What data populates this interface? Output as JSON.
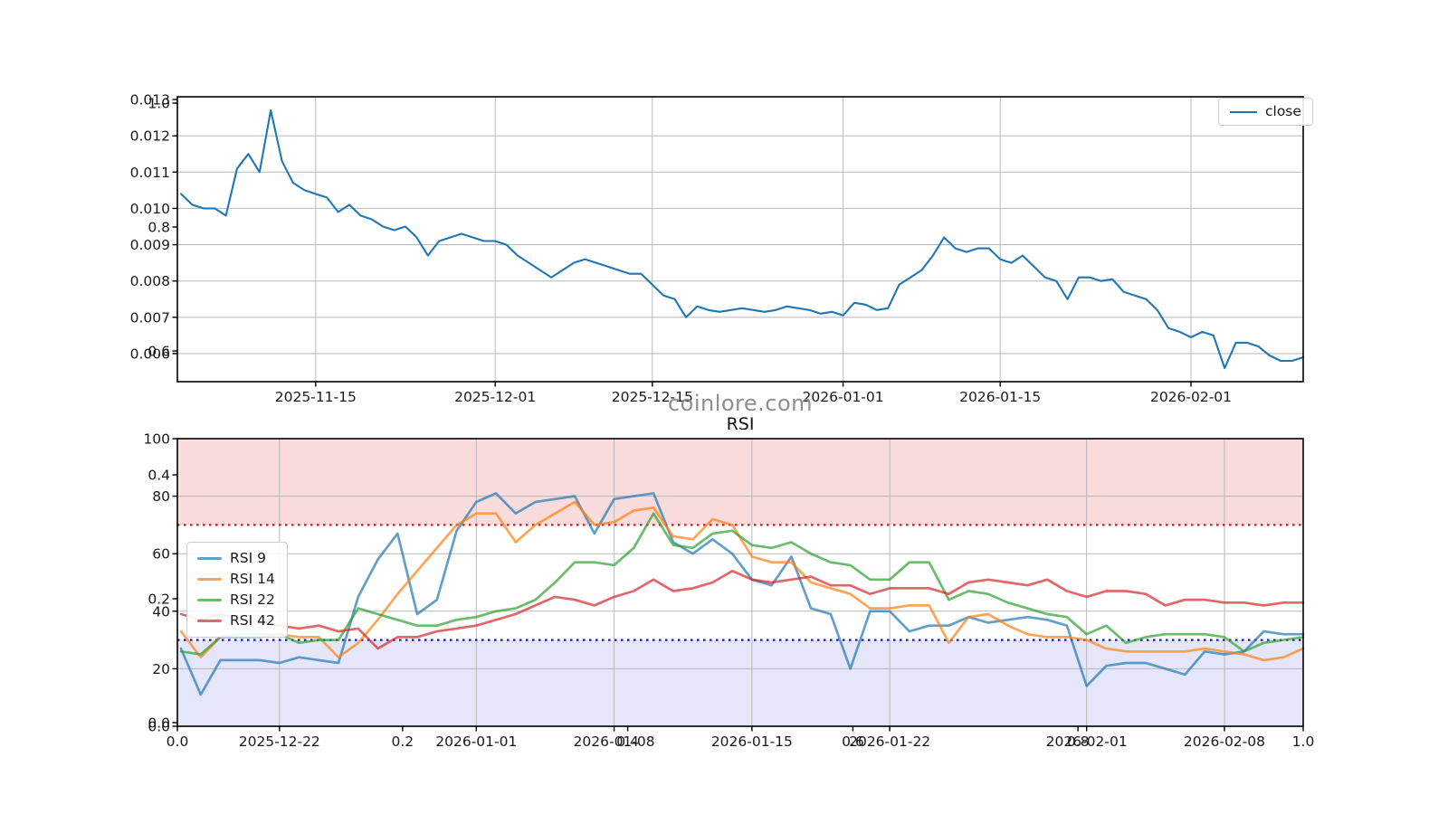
{
  "watermark": "coinlore.com",
  "overlay_axis": {
    "x_ticks": [
      {
        "label": "0.0",
        "f": 0.0
      },
      {
        "label": "0.2",
        "f": 0.2
      },
      {
        "label": "0.4",
        "f": 0.4
      },
      {
        "label": "0.6",
        "f": 0.6
      },
      {
        "label": "0.8",
        "f": 0.8
      },
      {
        "label": "1.0",
        "f": 1.0
      }
    ],
    "y_ticks": [
      {
        "label": "1.0",
        "f": 1.0
      },
      {
        "label": "0.8",
        "f": 0.8
      },
      {
        "label": "0.6",
        "f": 0.6
      },
      {
        "label": "0.4",
        "f": 0.4
      },
      {
        "label": "0.2",
        "f": 0.2
      },
      {
        "label": "0.0",
        "f": 0.0
      }
    ]
  },
  "colors": {
    "close": "#1f77b4",
    "rsi9": "rgba(31,119,180,0.7)",
    "rsi14": "rgba(255,127,14,0.7)",
    "rsi22": "rgba(44,160,44,0.7)",
    "rsi42": "rgba(214,39,40,0.7)",
    "overbought_fill": "#fbdcdc",
    "oversold_fill": "#e6e6fb",
    "overbought_line": "#e01020",
    "oversold_line": "#1414c8",
    "grid": "#b8b8b8",
    "frame": "#000000",
    "tick_text": "#191919"
  },
  "chart_data": [
    {
      "type": "line",
      "title": "",
      "ylabel": "",
      "xlabel": "",
      "grid": true,
      "legend_position": "upper right",
      "ylim": [
        0.0052,
        0.0131
      ],
      "y_ticks": [
        0.013,
        0.012,
        0.011,
        0.01,
        0.009,
        0.008,
        0.007,
        0.006
      ],
      "y_tick_labels": [
        "0.013",
        "0.012",
        "0.011",
        "0.010",
        "0.009",
        "0.008",
        "0.007",
        "0.006"
      ],
      "x_tick_labels": [
        "2025-11-15",
        "2025-12-01",
        "2025-12-15",
        "2026-01-01",
        "2026-01-15",
        "2026-02-01"
      ],
      "x_tick_days": [
        12,
        28,
        42,
        59,
        73,
        90
      ],
      "series": [
        {
          "name": "close",
          "color": "#1f77b4",
          "values": [
            0.0104,
            0.0101,
            0.01,
            0.01,
            0.0098,
            0.0111,
            0.0115,
            0.011,
            0.0127,
            0.0113,
            0.0107,
            0.0105,
            0.0104,
            0.0103,
            0.0099,
            0.0101,
            0.0098,
            0.0097,
            0.0095,
            0.0094,
            0.0095,
            0.0092,
            0.0087,
            0.0091,
            0.0092,
            0.0093,
            0.0092,
            0.0091,
            0.0091,
            0.009,
            0.0087,
            0.0085,
            0.0083,
            0.0081,
            0.0083,
            0.0085,
            0.0086,
            0.0085,
            0.0084,
            0.0083,
            0.0082,
            0.0082,
            0.0079,
            0.0076,
            0.0075,
            0.007,
            0.0073,
            0.0072,
            0.00715,
            0.0072,
            0.00725,
            0.0072,
            0.00715,
            0.0072,
            0.0073,
            0.00725,
            0.0072,
            0.0071,
            0.00715,
            0.00705,
            0.0074,
            0.00735,
            0.0072,
            0.00725,
            0.0079,
            0.0081,
            0.0083,
            0.0087,
            0.0092,
            0.0089,
            0.0088,
            0.0089,
            0.0089,
            0.0086,
            0.0085,
            0.0087,
            0.0084,
            0.0081,
            0.008,
            0.0075,
            0.0081,
            0.0081,
            0.008,
            0.00805,
            0.0077,
            0.0076,
            0.0075,
            0.0072,
            0.0067,
            0.0066,
            0.00645,
            0.0066,
            0.0065,
            0.0056,
            0.0063,
            0.0063,
            0.0062,
            0.00595,
            0.0058,
            0.0058,
            0.0059
          ]
        }
      ]
    },
    {
      "type": "line",
      "title": "RSI",
      "ylabel": "",
      "xlabel": "",
      "grid": true,
      "legend_position": "center left",
      "ylim": [
        0,
        100
      ],
      "y_ticks": [
        100,
        80,
        60,
        40,
        20,
        0
      ],
      "y_tick_labels": [
        "100",
        "80",
        "60",
        "40",
        "20",
        "0.0"
      ],
      "x_tick_labels": [
        "2025-12-22",
        "2026-01-01",
        "2026-01-08",
        "2026-01-15",
        "2026-01-22",
        "2026-02-01",
        "2026-02-08"
      ],
      "x_tick_days": [
        5,
        15,
        22,
        29,
        36,
        46,
        53
      ],
      "overbought_line": 70,
      "oversold_line": 30,
      "overbought_fill": [
        70,
        100
      ],
      "oversold_fill": [
        0,
        30
      ],
      "series": [
        {
          "name": "RSI 9",
          "color": "rgba(31,119,180,0.7)",
          "values": [
            27,
            11,
            23,
            23,
            23,
            22,
            24,
            23,
            22,
            45,
            58,
            67,
            39,
            44,
            68,
            78,
            81,
            74,
            78,
            79,
            80,
            67,
            79,
            80,
            81,
            64,
            60,
            65,
            60,
            51,
            49,
            59,
            41,
            39,
            20,
            40,
            40,
            33,
            35,
            35,
            38,
            36,
            37,
            38,
            37,
            35,
            14,
            21,
            22,
            22,
            20,
            18,
            26,
            25,
            26,
            33,
            32,
            32
          ]
        },
        {
          "name": "RSI 14",
          "color": "rgba(255,127,14,0.7)",
          "values": [
            33,
            24,
            31,
            31,
            31,
            32,
            31,
            31,
            24,
            29,
            37,
            46,
            54,
            62,
            70,
            74,
            74,
            64,
            70,
            74,
            78,
            70,
            71,
            75,
            76,
            66,
            65,
            72,
            70,
            59,
            57,
            57,
            50,
            48,
            46,
            41,
            41,
            42,
            42,
            29,
            38,
            39,
            35,
            32,
            31,
            31,
            30,
            27,
            26,
            26,
            26,
            26,
            27,
            26,
            25,
            23,
            24,
            27
          ]
        },
        {
          "name": "RSI 22",
          "color": "rgba(44,160,44,0.7)",
          "values": [
            26,
            25,
            31,
            32,
            32,
            32,
            29,
            30,
            30,
            41,
            39,
            37,
            35,
            35,
            37,
            38,
            40,
            41,
            44,
            50,
            57,
            57,
            56,
            62,
            74,
            63,
            62,
            67,
            68,
            63,
            62,
            64,
            60,
            57,
            56,
            51,
            51,
            57,
            57,
            44,
            47,
            46,
            43,
            41,
            39,
            38,
            32,
            35,
            29,
            31,
            32,
            32,
            32,
            31,
            26,
            29,
            30,
            31
          ]
        },
        {
          "name": "RSI 42",
          "color": "rgba(214,39,40,0.7)",
          "values": [
            39,
            37,
            39,
            37,
            36,
            35,
            34,
            35,
            33,
            34,
            27,
            31,
            31,
            33,
            34,
            35,
            37,
            39,
            42,
            45,
            44,
            42,
            45,
            47,
            51,
            47,
            48,
            50,
            54,
            51,
            50,
            51,
            52,
            49,
            49,
            46,
            48,
            48,
            48,
            46,
            50,
            51,
            50,
            49,
            51,
            47,
            45,
            47,
            47,
            46,
            42,
            44,
            44,
            43,
            43,
            42,
            43,
            43
          ]
        }
      ]
    }
  ]
}
